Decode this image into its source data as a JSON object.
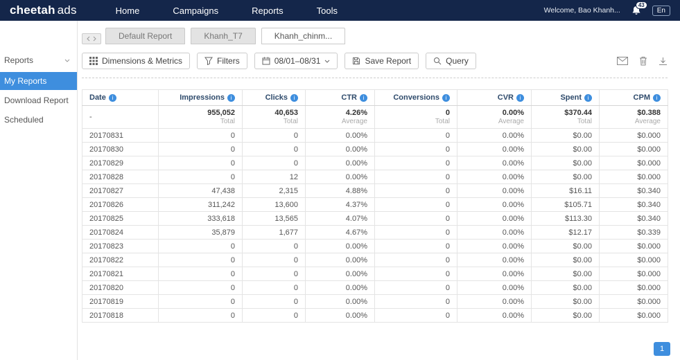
{
  "navbar": {
    "brand_bold": "cheetah",
    "brand_light": "ads",
    "items": [
      "Home",
      "Campaigns",
      "Reports",
      "Tools"
    ],
    "welcome": "Welcome, Bao Khanh...",
    "notification_count": "43",
    "language": "En"
  },
  "sidebar": {
    "section_label": "Reports",
    "items": [
      "My Reports",
      "Download Report",
      "Scheduled"
    ]
  },
  "tabs": {
    "items": [
      "Default Report",
      "Khanh_T7",
      "Khanh_chinm..."
    ]
  },
  "toolbar": {
    "dimensions_label": "Dimensions & Metrics",
    "filters_label": "Filters",
    "date_range": "08/01–08/31",
    "save_label": "Save Report",
    "query_label": "Query"
  },
  "table": {
    "columns": [
      "Date",
      "Impressions",
      "Clicks",
      "CTR",
      "Conversions",
      "CVR",
      "Spent",
      "CPM"
    ],
    "totals": {
      "date_label": "-",
      "cells": [
        {
          "value": "955,052",
          "sub": "Total"
        },
        {
          "value": "40,653",
          "sub": "Total"
        },
        {
          "value": "4.26%",
          "sub": "Average"
        },
        {
          "value": "0",
          "sub": "Total"
        },
        {
          "value": "0.00%",
          "sub": "Average"
        },
        {
          "value": "$370.44",
          "sub": "Total"
        },
        {
          "value": "$0.388",
          "sub": "Average"
        }
      ]
    },
    "rows": [
      [
        "20170831",
        "0",
        "0",
        "0.00%",
        "0",
        "0.00%",
        "$0.00",
        "$0.000"
      ],
      [
        "20170830",
        "0",
        "0",
        "0.00%",
        "0",
        "0.00%",
        "$0.00",
        "$0.000"
      ],
      [
        "20170829",
        "0",
        "0",
        "0.00%",
        "0",
        "0.00%",
        "$0.00",
        "$0.000"
      ],
      [
        "20170828",
        "0",
        "12",
        "0.00%",
        "0",
        "0.00%",
        "$0.00",
        "$0.000"
      ],
      [
        "20170827",
        "47,438",
        "2,315",
        "4.88%",
        "0",
        "0.00%",
        "$16.11",
        "$0.340"
      ],
      [
        "20170826",
        "311,242",
        "13,600",
        "4.37%",
        "0",
        "0.00%",
        "$105.71",
        "$0.340"
      ],
      [
        "20170825",
        "333,618",
        "13,565",
        "4.07%",
        "0",
        "0.00%",
        "$113.30",
        "$0.340"
      ],
      [
        "20170824",
        "35,879",
        "1,677",
        "4.67%",
        "0",
        "0.00%",
        "$12.17",
        "$0.339"
      ],
      [
        "20170823",
        "0",
        "0",
        "0.00%",
        "0",
        "0.00%",
        "$0.00",
        "$0.000"
      ],
      [
        "20170822",
        "0",
        "0",
        "0.00%",
        "0",
        "0.00%",
        "$0.00",
        "$0.000"
      ],
      [
        "20170821",
        "0",
        "0",
        "0.00%",
        "0",
        "0.00%",
        "$0.00",
        "$0.000"
      ],
      [
        "20170820",
        "0",
        "0",
        "0.00%",
        "0",
        "0.00%",
        "$0.00",
        "$0.000"
      ],
      [
        "20170819",
        "0",
        "0",
        "0.00%",
        "0",
        "0.00%",
        "$0.00",
        "$0.000"
      ],
      [
        "20170818",
        "0",
        "0",
        "0.00%",
        "0",
        "0.00%",
        "$0.00",
        "$0.000"
      ]
    ]
  },
  "pagination": {
    "page": "1"
  },
  "colors": {
    "accent_blue": "#3e8ede",
    "navbar_bg": "#14264a"
  }
}
